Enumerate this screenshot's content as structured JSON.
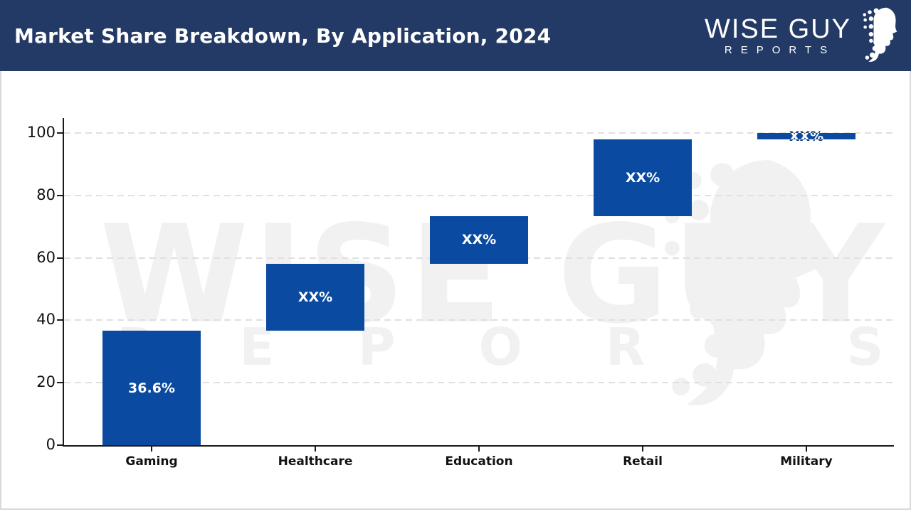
{
  "header": {
    "title": "Market Share Breakdown, By Application, 2024",
    "logo": {
      "line1": "WISE GUY",
      "line2": "REPORTS"
    }
  },
  "watermark": {
    "line1": "WISE GUY",
    "line2": "R E P O R T S"
  },
  "colors": {
    "header_bg": "#233a66",
    "bar": "#0a4aa0",
    "bar_label": "#ffffff",
    "outside_label": "#1c3a6a",
    "axis": "#1a1a1a",
    "grid": "#e0e0e0",
    "tick_text": "#111111",
    "watermark": "#f1f1f1",
    "card_border": "#d9d9d9"
  },
  "chart_data": {
    "type": "bar",
    "subtype": "waterfall",
    "title": "Market Share Breakdown, By Application, 2024",
    "categories": [
      "Gaming",
      "Healthcare",
      "Education",
      "Retail",
      "Military"
    ],
    "segments": [
      {
        "category": "Gaming",
        "start": 0,
        "end": 36.6,
        "label": "36.6%"
      },
      {
        "category": "Healthcare",
        "start": 36.6,
        "end": 58.1,
        "label": "XX%"
      },
      {
        "category": "Education",
        "start": 58.1,
        "end": 73.4,
        "label": "XX%"
      },
      {
        "category": "Retail",
        "start": 73.4,
        "end": 97.9,
        "label": "XX%"
      },
      {
        "category": "Military",
        "start": 97.9,
        "end": 100,
        "label": "XX%"
      }
    ],
    "yticks": [
      0,
      20,
      40,
      60,
      80,
      100
    ],
    "ylim": [
      0,
      104.6
    ],
    "xlabel": "",
    "ylabel": "",
    "grid": "dashed-horizontal",
    "legend": "none"
  }
}
